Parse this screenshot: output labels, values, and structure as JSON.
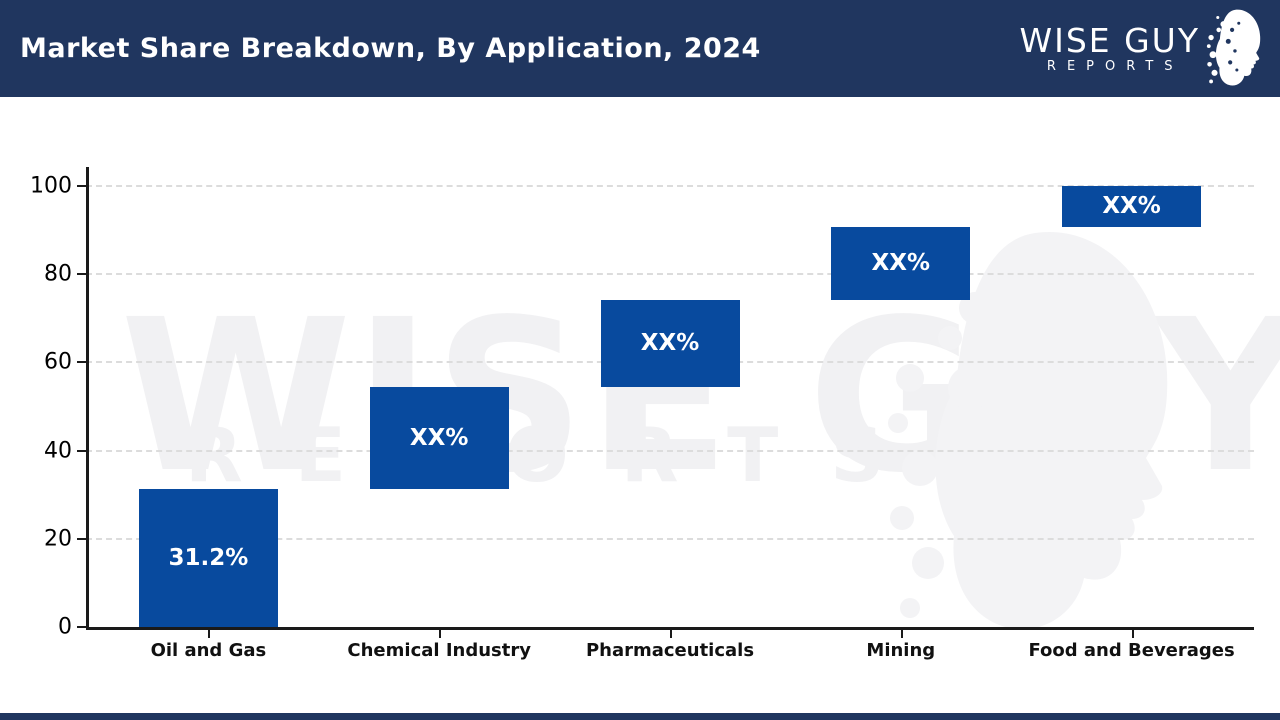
{
  "header": {
    "title": "Market Share Breakdown, By Application, 2024",
    "background_color": "#20365f",
    "logo": {
      "line1": "WISE GUY",
      "line2": "REPORTS"
    }
  },
  "watermark": {
    "line1": "WISE GUY",
    "line2": "REPORTS"
  },
  "footer": {
    "background_color": "#20365f"
  },
  "chart_data": {
    "type": "bar",
    "subtype": "waterfall",
    "title": "Market Share Breakdown, By Application, 2024",
    "categories": [
      "Oil and Gas",
      "Chemical Industry",
      "Pharmaceuticals",
      "Mining",
      "Food and Beverages"
    ],
    "series": [
      {
        "category": "Oil and Gas",
        "start": 0,
        "end": 31.2,
        "label": "31.2%"
      },
      {
        "category": "Chemical Industry",
        "start": 31.2,
        "end": 54.5,
        "label": "XX%"
      },
      {
        "category": "Pharmaceuticals",
        "start": 54.5,
        "end": 74.2,
        "label": "XX%"
      },
      {
        "category": "Mining",
        "start": 74.2,
        "end": 90.8,
        "label": "XX%"
      },
      {
        "category": "Food and Beverages",
        "start": 90.8,
        "end": 100,
        "label": "XX%"
      }
    ],
    "bar_color": "#084a9e",
    "bar_label_color": "#ffffff",
    "yticks": [
      0,
      20,
      40,
      60,
      80,
      100
    ],
    "ylim": [
      0,
      104
    ],
    "grid": "horizontal-dashed",
    "gridline_color": "#dcdcdc",
    "axis_color": "#1a1a1a",
    "legend": "none"
  }
}
